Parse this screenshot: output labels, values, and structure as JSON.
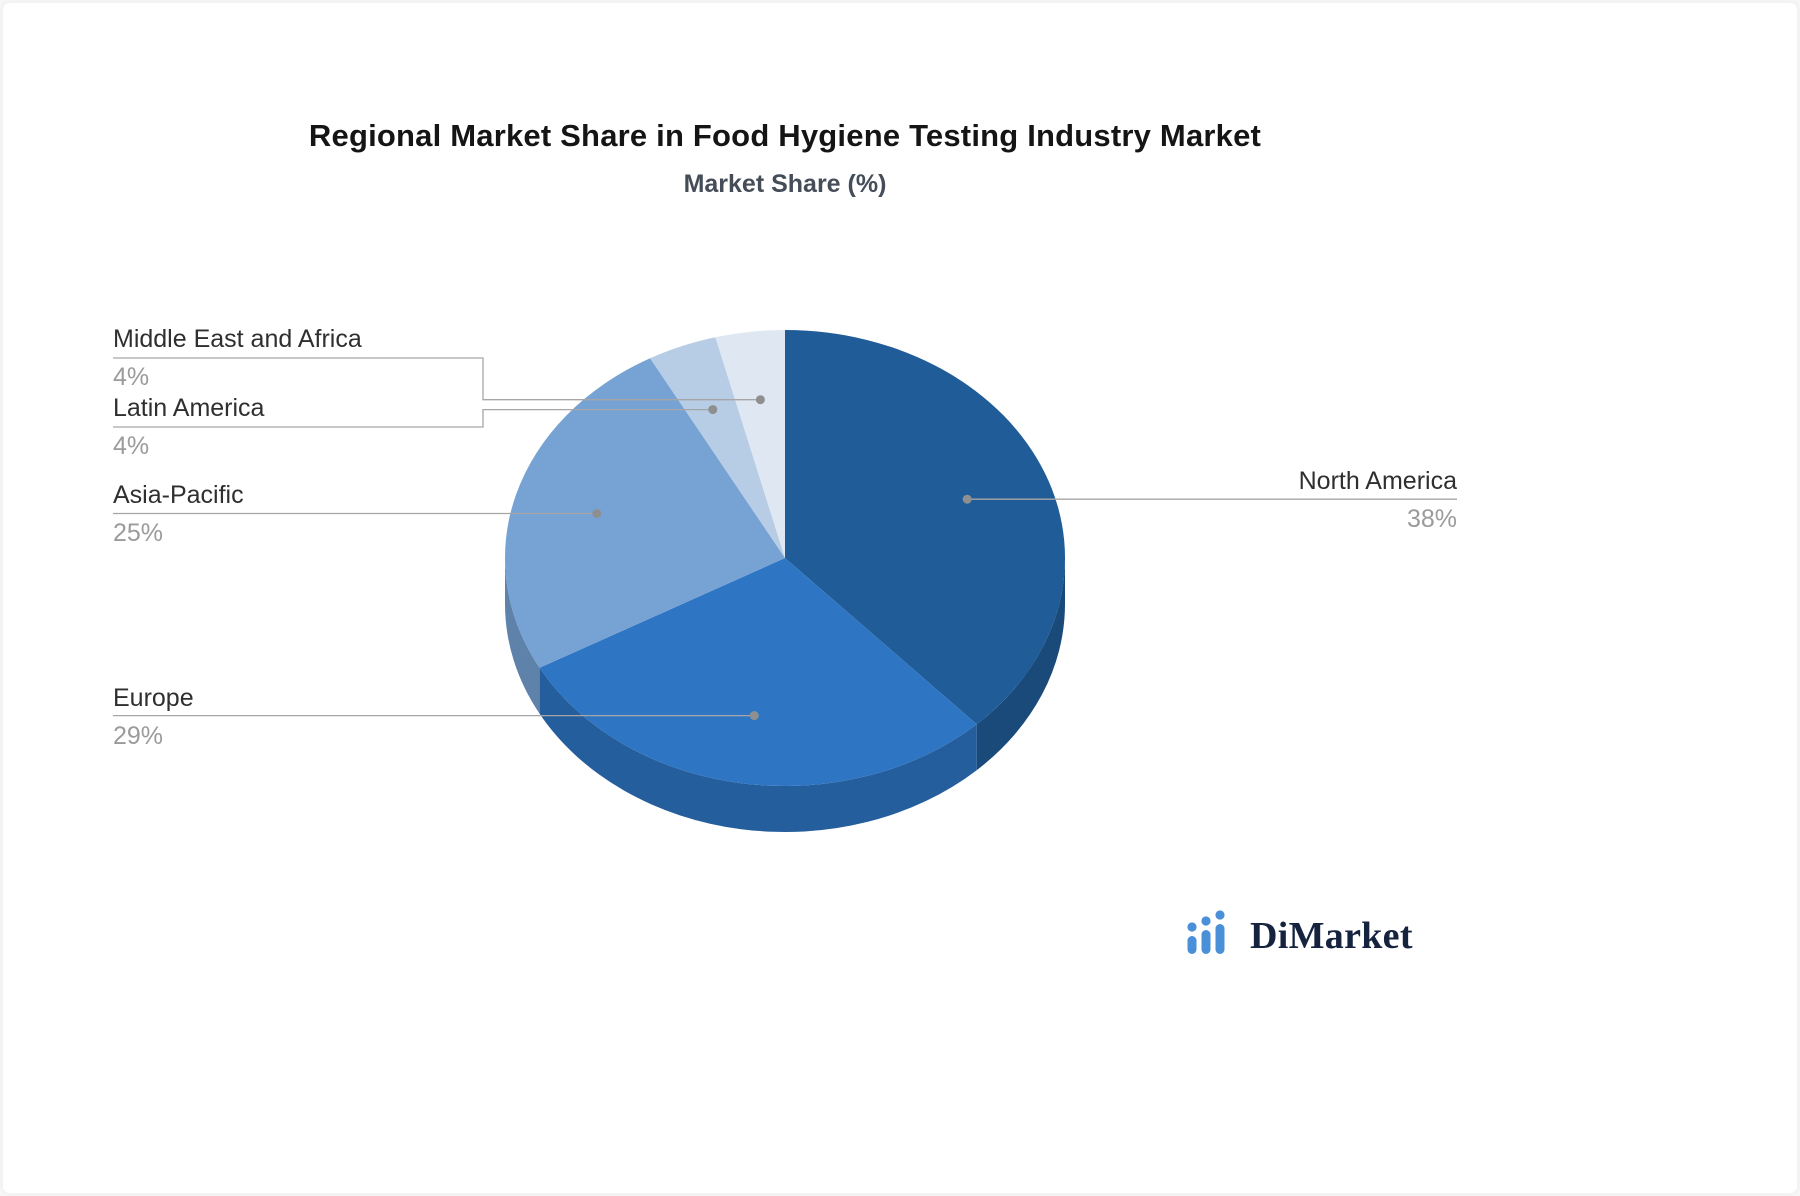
{
  "page": {
    "background": "#ffffff"
  },
  "header": {
    "title": "Regional Market Share in Food Hygiene Testing Industry Market",
    "subtitle": "Market Share (%)"
  },
  "brand": {
    "name": "DiMarket",
    "icon": "bar-chart-dots-icon",
    "icon_color": "#4a90d9",
    "text_color": "#16233e"
  },
  "chart_data": {
    "type": "pie",
    "style": "3d-pie",
    "title": "Regional Market Share in Food Hygiene Testing Industry Market",
    "subtitle": "Market Share (%)",
    "unit": "%",
    "start_angle_deg": 0,
    "direction": "clockwise",
    "total": 100,
    "slices": [
      {
        "label": "North America",
        "value": 38,
        "display_value": "38%",
        "color": "#205d98"
      },
      {
        "label": "Europe",
        "value": 29,
        "display_value": "29%",
        "color": "#2e75c4"
      },
      {
        "label": "Asia-Pacific",
        "value": 25,
        "display_value": "25%",
        "color": "#76a3d4"
      },
      {
        "label": "Latin America",
        "value": 4,
        "display_value": "4%",
        "color": "#b7cde5"
      },
      {
        "label": "Middle East and Africa",
        "value": 4,
        "display_value": "4%",
        "color": "#dfe7f2"
      }
    ],
    "label_text_color": "#2f2f2f",
    "value_text_color": "#9b9b9b",
    "leader_line_color": "#a6a6a6",
    "legend_position": "callout-labels"
  }
}
